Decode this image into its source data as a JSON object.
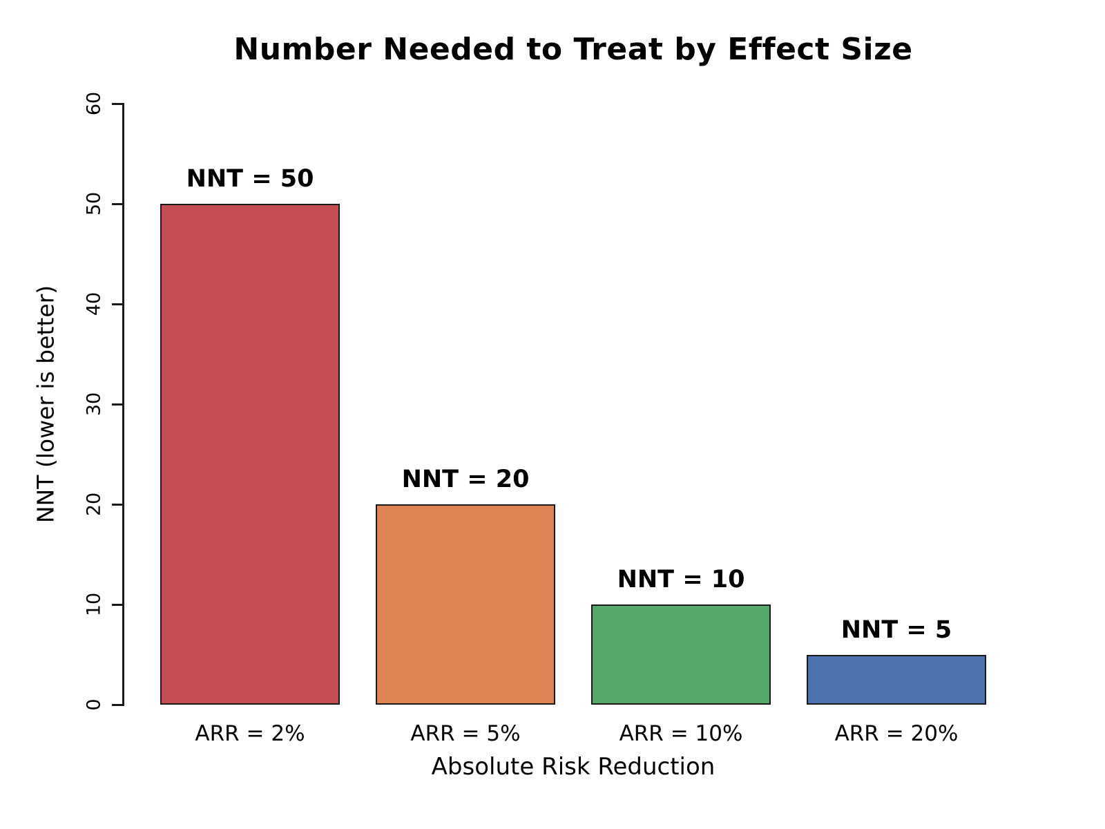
{
  "chart_data": {
    "type": "bar",
    "title": "Number Needed to Treat by Effect Size",
    "xlabel": "Absolute Risk Reduction",
    "ylabel": "NNT (lower is better)",
    "ylim": [
      0,
      60
    ],
    "yticks": [
      0,
      10,
      20,
      30,
      40,
      50,
      60
    ],
    "grid": false,
    "legend": "none",
    "categories": [
      "ARR = 2%",
      "ARR = 5%",
      "ARR = 10%",
      "ARR = 20%"
    ],
    "values": [
      50,
      20,
      10,
      5
    ],
    "bar_labels": [
      "NNT = 50",
      "NNT = 20",
      "NNT = 10",
      "NNT = 5"
    ],
    "bar_colors": [
      "#c44e52",
      "#dd8452",
      "#55a868",
      "#4c72b0"
    ],
    "bar_edge_color": "#1a1a1a",
    "axis_color": "#1a1a1a"
  }
}
